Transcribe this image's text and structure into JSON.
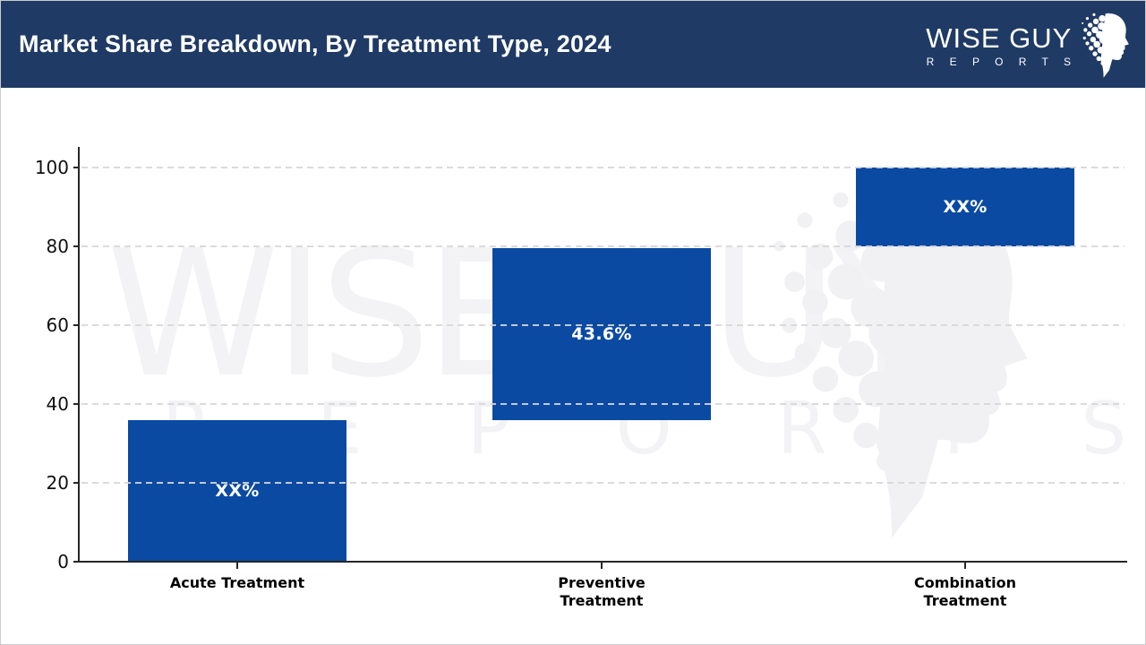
{
  "header": {
    "title": "Market Share Breakdown, By Treatment Type, 2024",
    "logo": {
      "wordmark": "WISE GUY",
      "subtext": "R E P O R T S"
    }
  },
  "watermark": {
    "line1": "WISE GUY",
    "line2": "R E P O R T S"
  },
  "chart_data": {
    "type": "bar",
    "subtype": "floating-waterfall-segments",
    "title": "Market Share Breakdown, By Treatment Type, 2024",
    "categories": [
      "Acute Treatment",
      "Preventive Treatment",
      "Combination Treatment"
    ],
    "categories_display": [
      [
        "Acute Treatment"
      ],
      [
        "Preventive",
        "Treatment"
      ],
      [
        "Combination",
        "Treatment"
      ]
    ],
    "series": [
      {
        "name": "Market Share (%)",
        "segments": [
          {
            "category": "Acute Treatment",
            "base": 0,
            "top": 36,
            "label": "XX%"
          },
          {
            "category": "Preventive Treatment",
            "base": 36,
            "top": 79.6,
            "label": "43.6%"
          },
          {
            "category": "Combination Treatment",
            "base": 80,
            "top": 100,
            "label": "XX%"
          }
        ]
      }
    ],
    "xlabel": "",
    "ylabel": "",
    "ylim": [
      0,
      100
    ],
    "yticks": [
      0,
      20,
      40,
      60,
      80,
      100
    ],
    "grid": "horizontal dashed, drawn above bars",
    "legend": "none",
    "bar_color": "#0B4AA2",
    "bar_label_color": "#ffffff"
  },
  "colors": {
    "header_bg": "#1F3A64",
    "bar": "#0B4AA2",
    "grid": "#d7d7d7",
    "axis": "#262626",
    "watermark": "#f3f3f6",
    "page_border": "#cbcbd0"
  }
}
